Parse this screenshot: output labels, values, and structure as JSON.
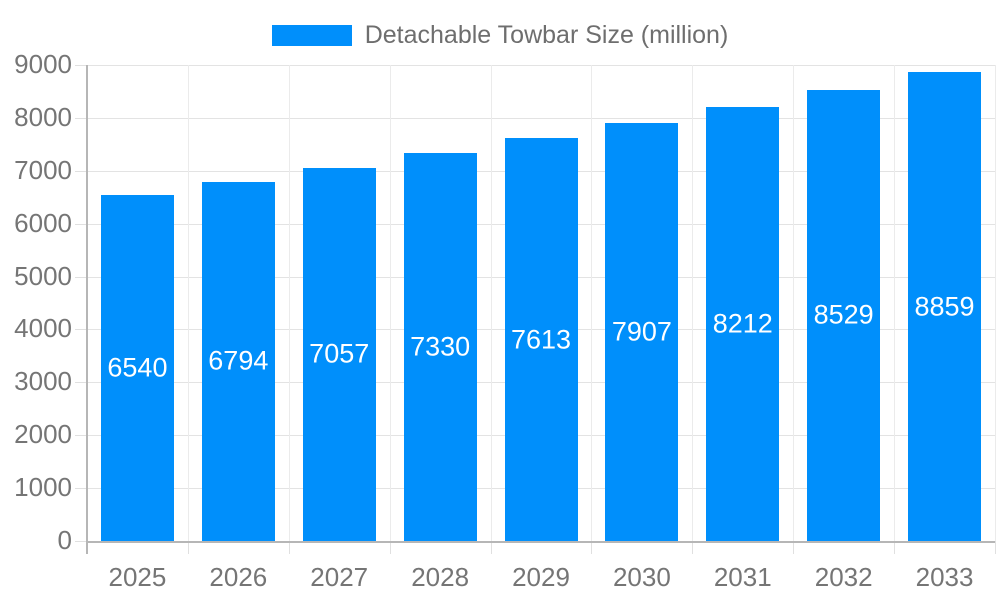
{
  "chart_data": {
    "type": "bar",
    "title": "Detachable Towbar Size (million)",
    "legend_position": "top",
    "categories": [
      "2025",
      "2026",
      "2027",
      "2028",
      "2029",
      "2030",
      "2031",
      "2032",
      "2033"
    ],
    "series": [
      {
        "name": "Detachable Towbar Size (million)",
        "color": "#008ffb",
        "values": [
          6540,
          6794,
          7057,
          7330,
          7613,
          7907,
          8212,
          8529,
          8859
        ]
      }
    ],
    "value_labels": "inside-center-white",
    "xlabel": "",
    "ylabel": "",
    "y_ticks": [
      0,
      1000,
      2000,
      3000,
      4000,
      5000,
      6000,
      7000,
      8000,
      9000
    ],
    "ylim": [
      0,
      9000
    ],
    "grid": true,
    "colors": {
      "bar": "#008ffb",
      "axis_label_text": "#757575",
      "legend_text": "#6e6e6e",
      "gridline": "#e3e3e3",
      "axis_line": "#b6b6b6",
      "value_label_text": "#ffffff",
      "background": "#ffffff"
    }
  }
}
